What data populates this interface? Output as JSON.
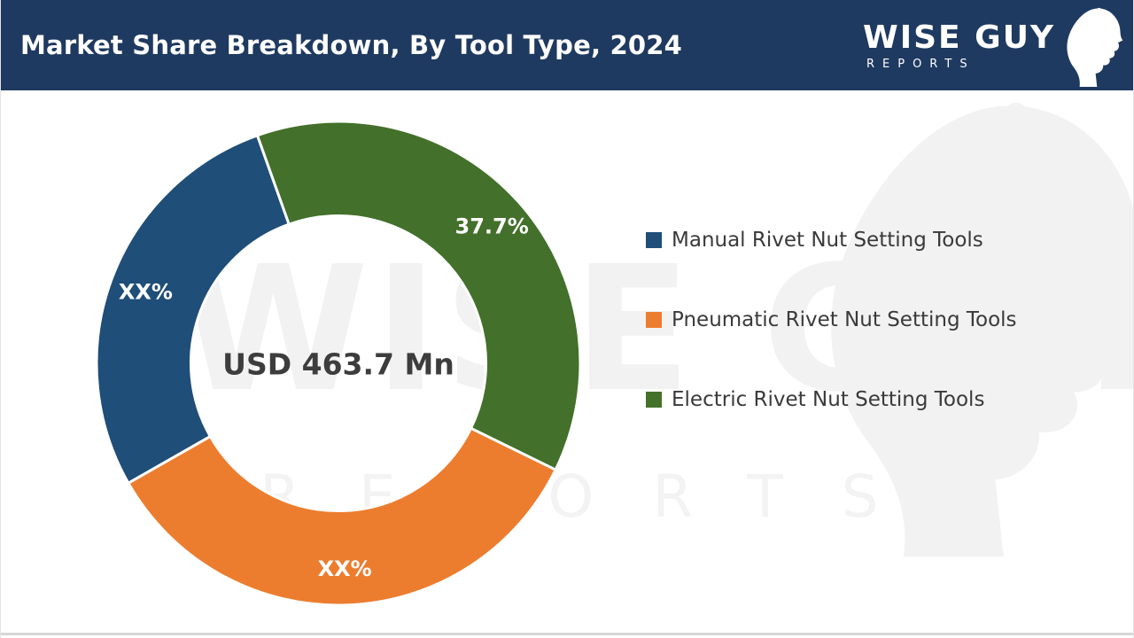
{
  "header": {
    "title": "Market Share Breakdown, By Tool Type, 2024",
    "bg_color": "#1f3a60"
  },
  "logo": {
    "line1": "WISE GUY",
    "line2": "REPORTS"
  },
  "watermark": {
    "line1": "WISE GUY",
    "line2": "REPORTS"
  },
  "chart_data": {
    "type": "pie",
    "subtype": "donut",
    "center_label": "USD 463.7 Mn",
    "start_angle_deg": -19.6,
    "donut_hole_ratio": 0.61,
    "label_radius_ratio": 0.85,
    "series": [
      {
        "name": "Electric Rivet Nut Setting Tools",
        "value_pct": 37.7,
        "label": "37.7%",
        "color": "#43702a"
      },
      {
        "name": "Pneumatic Rivet Nut Setting Tools",
        "value_pct": 34.5,
        "label": "XX%",
        "color": "#ec7d2f"
      },
      {
        "name": "Manual Rivet Nut Setting Tools",
        "value_pct": 27.8,
        "label": "XX%",
        "color": "#1f4e78"
      }
    ]
  },
  "legend": {
    "items": [
      {
        "label": "Manual Rivet Nut Setting Tools",
        "color": "#1f4e78"
      },
      {
        "label": "Pneumatic Rivet Nut Setting Tools",
        "color": "#ec7d2f"
      },
      {
        "label": "Electric Rivet Nut Setting Tools",
        "color": "#45722b"
      }
    ]
  },
  "colors": {
    "header_bg": "#1f3a60",
    "text_dark": "#3a3a3a",
    "watermark_gray": "#f2f2f2",
    "slice_label_text": "#ffffff"
  }
}
